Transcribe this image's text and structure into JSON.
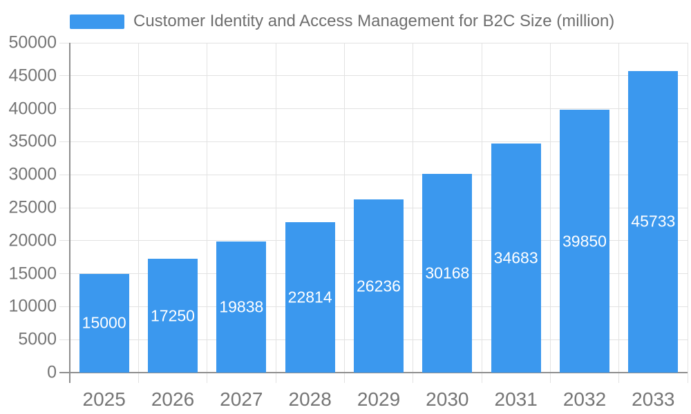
{
  "chart_data": {
    "type": "bar",
    "title": "Customer Identity and Access Management for B2C Size (million)",
    "categories": [
      "2025",
      "2026",
      "2027",
      "2028",
      "2029",
      "2030",
      "2031",
      "2032",
      "2033"
    ],
    "values": [
      15000,
      17250,
      19838,
      22814,
      26236,
      30168,
      34683,
      39850,
      45733
    ],
    "value_labels": [
      "15000",
      "17250",
      "19838",
      "22814",
      "26236",
      "30168",
      "34683",
      "39850",
      "45733"
    ],
    "xlabel": "",
    "ylabel": "",
    "ylim": [
      0,
      50000
    ],
    "ytick_step": 5000,
    "ytick_labels": [
      "0",
      "5000",
      "10000",
      "15000",
      "20000",
      "25000",
      "30000",
      "35000",
      "40000",
      "45000",
      "50000"
    ],
    "grid": true,
    "legend_position": "top",
    "colors": {
      "bar": "#3b98ee",
      "value_label": "#ffffff",
      "axis_text": "#757575",
      "legend_text": "#6e6e6e",
      "grid_line": "#e2e2e2",
      "axis_line": "#8e8e8e",
      "background": "#ffffff"
    }
  }
}
